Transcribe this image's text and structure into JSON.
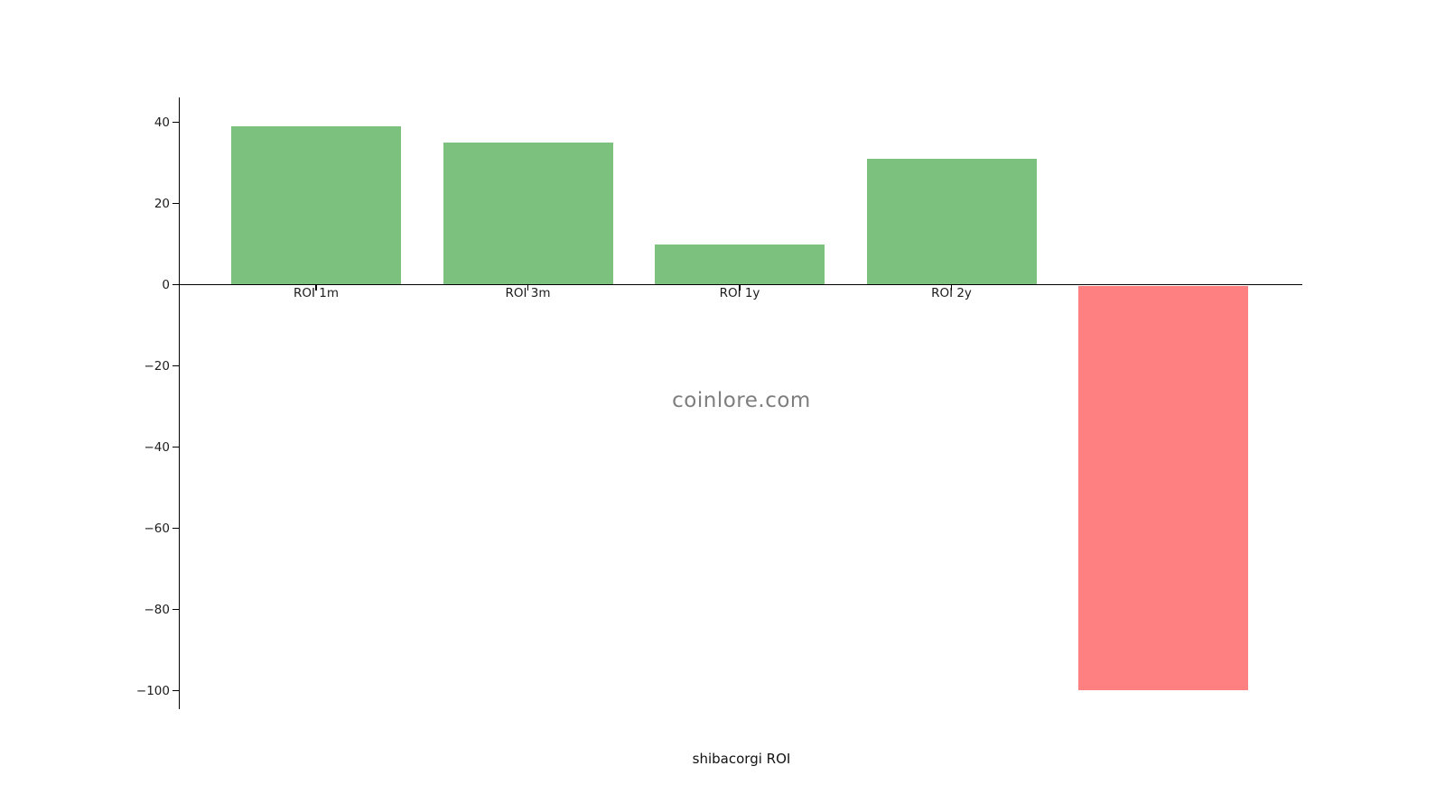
{
  "chart_data": {
    "type": "bar",
    "title": "",
    "xlabel": "shibacorgi ROI",
    "ylabel": "",
    "categories": [
      "ROI 1m",
      "ROI 3m",
      "ROI 1y",
      "ROI 2y",
      ""
    ],
    "values": [
      39,
      35,
      10,
      31,
      -100
    ],
    "yticks": [
      40,
      20,
      0,
      -20,
      -40,
      -60,
      -80,
      -100
    ],
    "ytick_labels": [
      "40",
      "20",
      "0",
      "−20",
      "−40",
      "−60",
      "−80",
      "−100"
    ],
    "ylim": [
      -104.5,
      46.5
    ],
    "grid": false,
    "legend_position": "none",
    "watermark": "coinlore.com",
    "bar_colors": {
      "positive": "#7cc17d",
      "negative": "#ff8080"
    }
  },
  "colors": {
    "axis": "#000000",
    "tick_text": "#1c1c1c",
    "watermark_text": "#7e7e7e",
    "background": "#ffffff"
  }
}
